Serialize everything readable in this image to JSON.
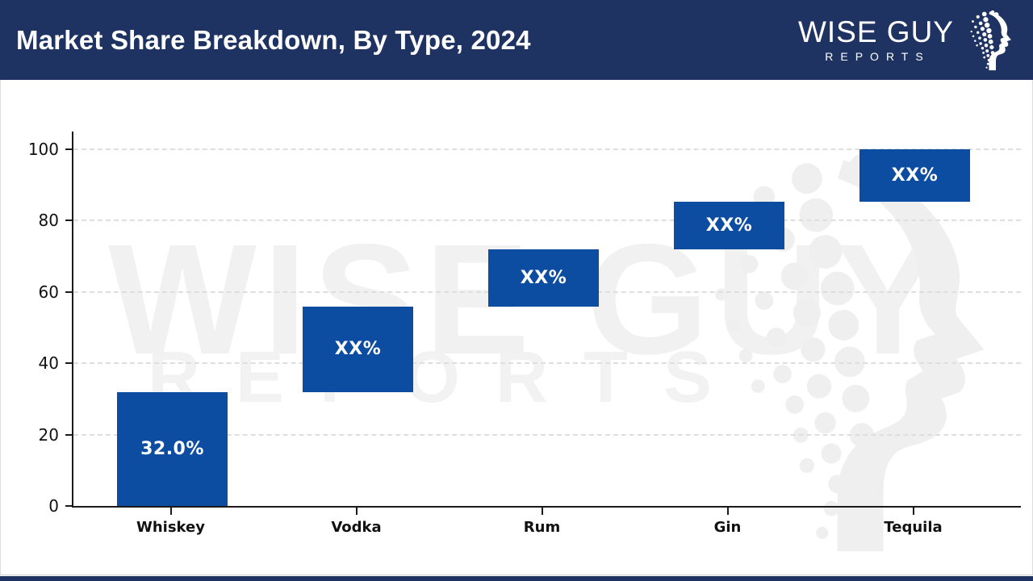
{
  "header": {
    "title": "Market Share Breakdown, By Type, 2024",
    "brand": {
      "name": "WISE GUY",
      "sub": "REPORTS"
    }
  },
  "watermark": {
    "name": "WISE GUY",
    "sub": "REPORTS"
  },
  "chart_data": {
    "type": "bar",
    "subtype": "waterfall",
    "title": "Market Share Breakdown, By Type, 2024",
    "categories": [
      "Whiskey",
      "Vodka",
      "Rum",
      "Gin",
      "Tequila"
    ],
    "series": [
      {
        "name": "Market share (%)",
        "segments": [
          {
            "category": "Whiskey",
            "start": 0,
            "end": 32,
            "label": "32.0%"
          },
          {
            "category": "Vodka",
            "start": 32,
            "end": 56,
            "label": "XX%"
          },
          {
            "category": "Rum",
            "start": 56,
            "end": 72,
            "label": "XX%"
          },
          {
            "category": "Gin",
            "start": 72,
            "end": 85.3,
            "label": "XX%"
          },
          {
            "category": "Tequila",
            "start": 85.3,
            "end": 100,
            "label": "XX%"
          }
        ]
      }
    ],
    "xlabel": "",
    "ylabel": "",
    "yticks": [
      0,
      20,
      40,
      60,
      80,
      100
    ],
    "ylim": [
      0,
      105
    ],
    "grid": "horizontal-dashed",
    "legend": "none"
  },
  "colors": {
    "header_bg": "#1f3363",
    "footer_bg": "#1f3363",
    "bar": "#0d4da1",
    "bar_label": "#ffffff",
    "grid_line": "#dedede",
    "axis": "#1a1a1a",
    "watermark": "#f1f1f1"
  }
}
